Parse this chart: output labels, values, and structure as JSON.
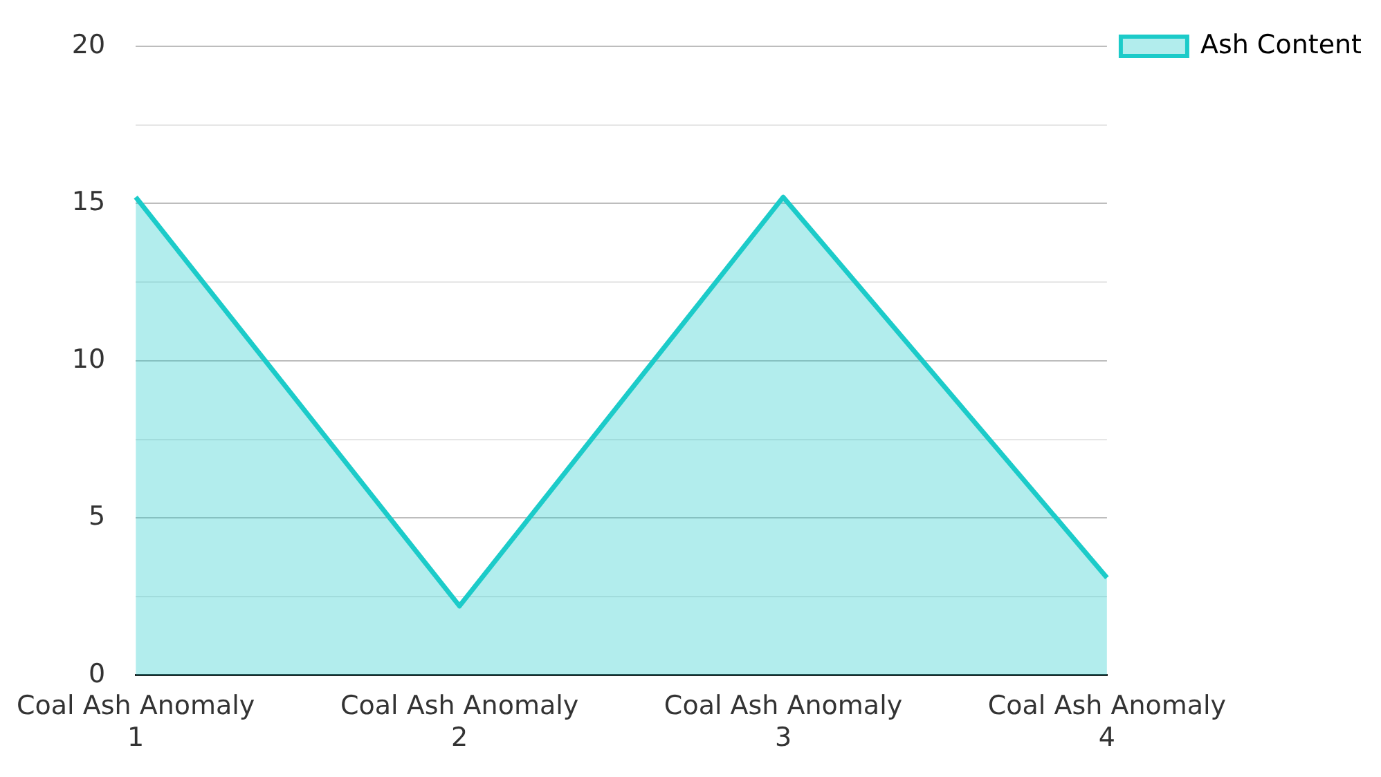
{
  "chart_data": {
    "type": "area",
    "categories": [
      "Coal Ash Anomaly 1",
      "Coal Ash Anomaly 2",
      "Coal Ash Anomaly 3",
      "Coal Ash Anomaly 4"
    ],
    "series": [
      {
        "name": "Ash Content",
        "color": "#1ccbc9",
        "values": [
          15.2,
          2.2,
          15.2,
          3.1
        ]
      }
    ],
    "ylim": [
      0,
      20
    ],
    "yticks": [
      0,
      {
        "value": 2.5,
        "label": null
      },
      5,
      {
        "value": 7.5,
        "label": null
      },
      10,
      {
        "value": 12.5,
        "label": null
      },
      15,
      {
        "value": 17.5,
        "label": null
      },
      20
    ],
    "grid": "y",
    "legend": "top right",
    "marker": "none",
    "line_style": "solid"
  }
}
